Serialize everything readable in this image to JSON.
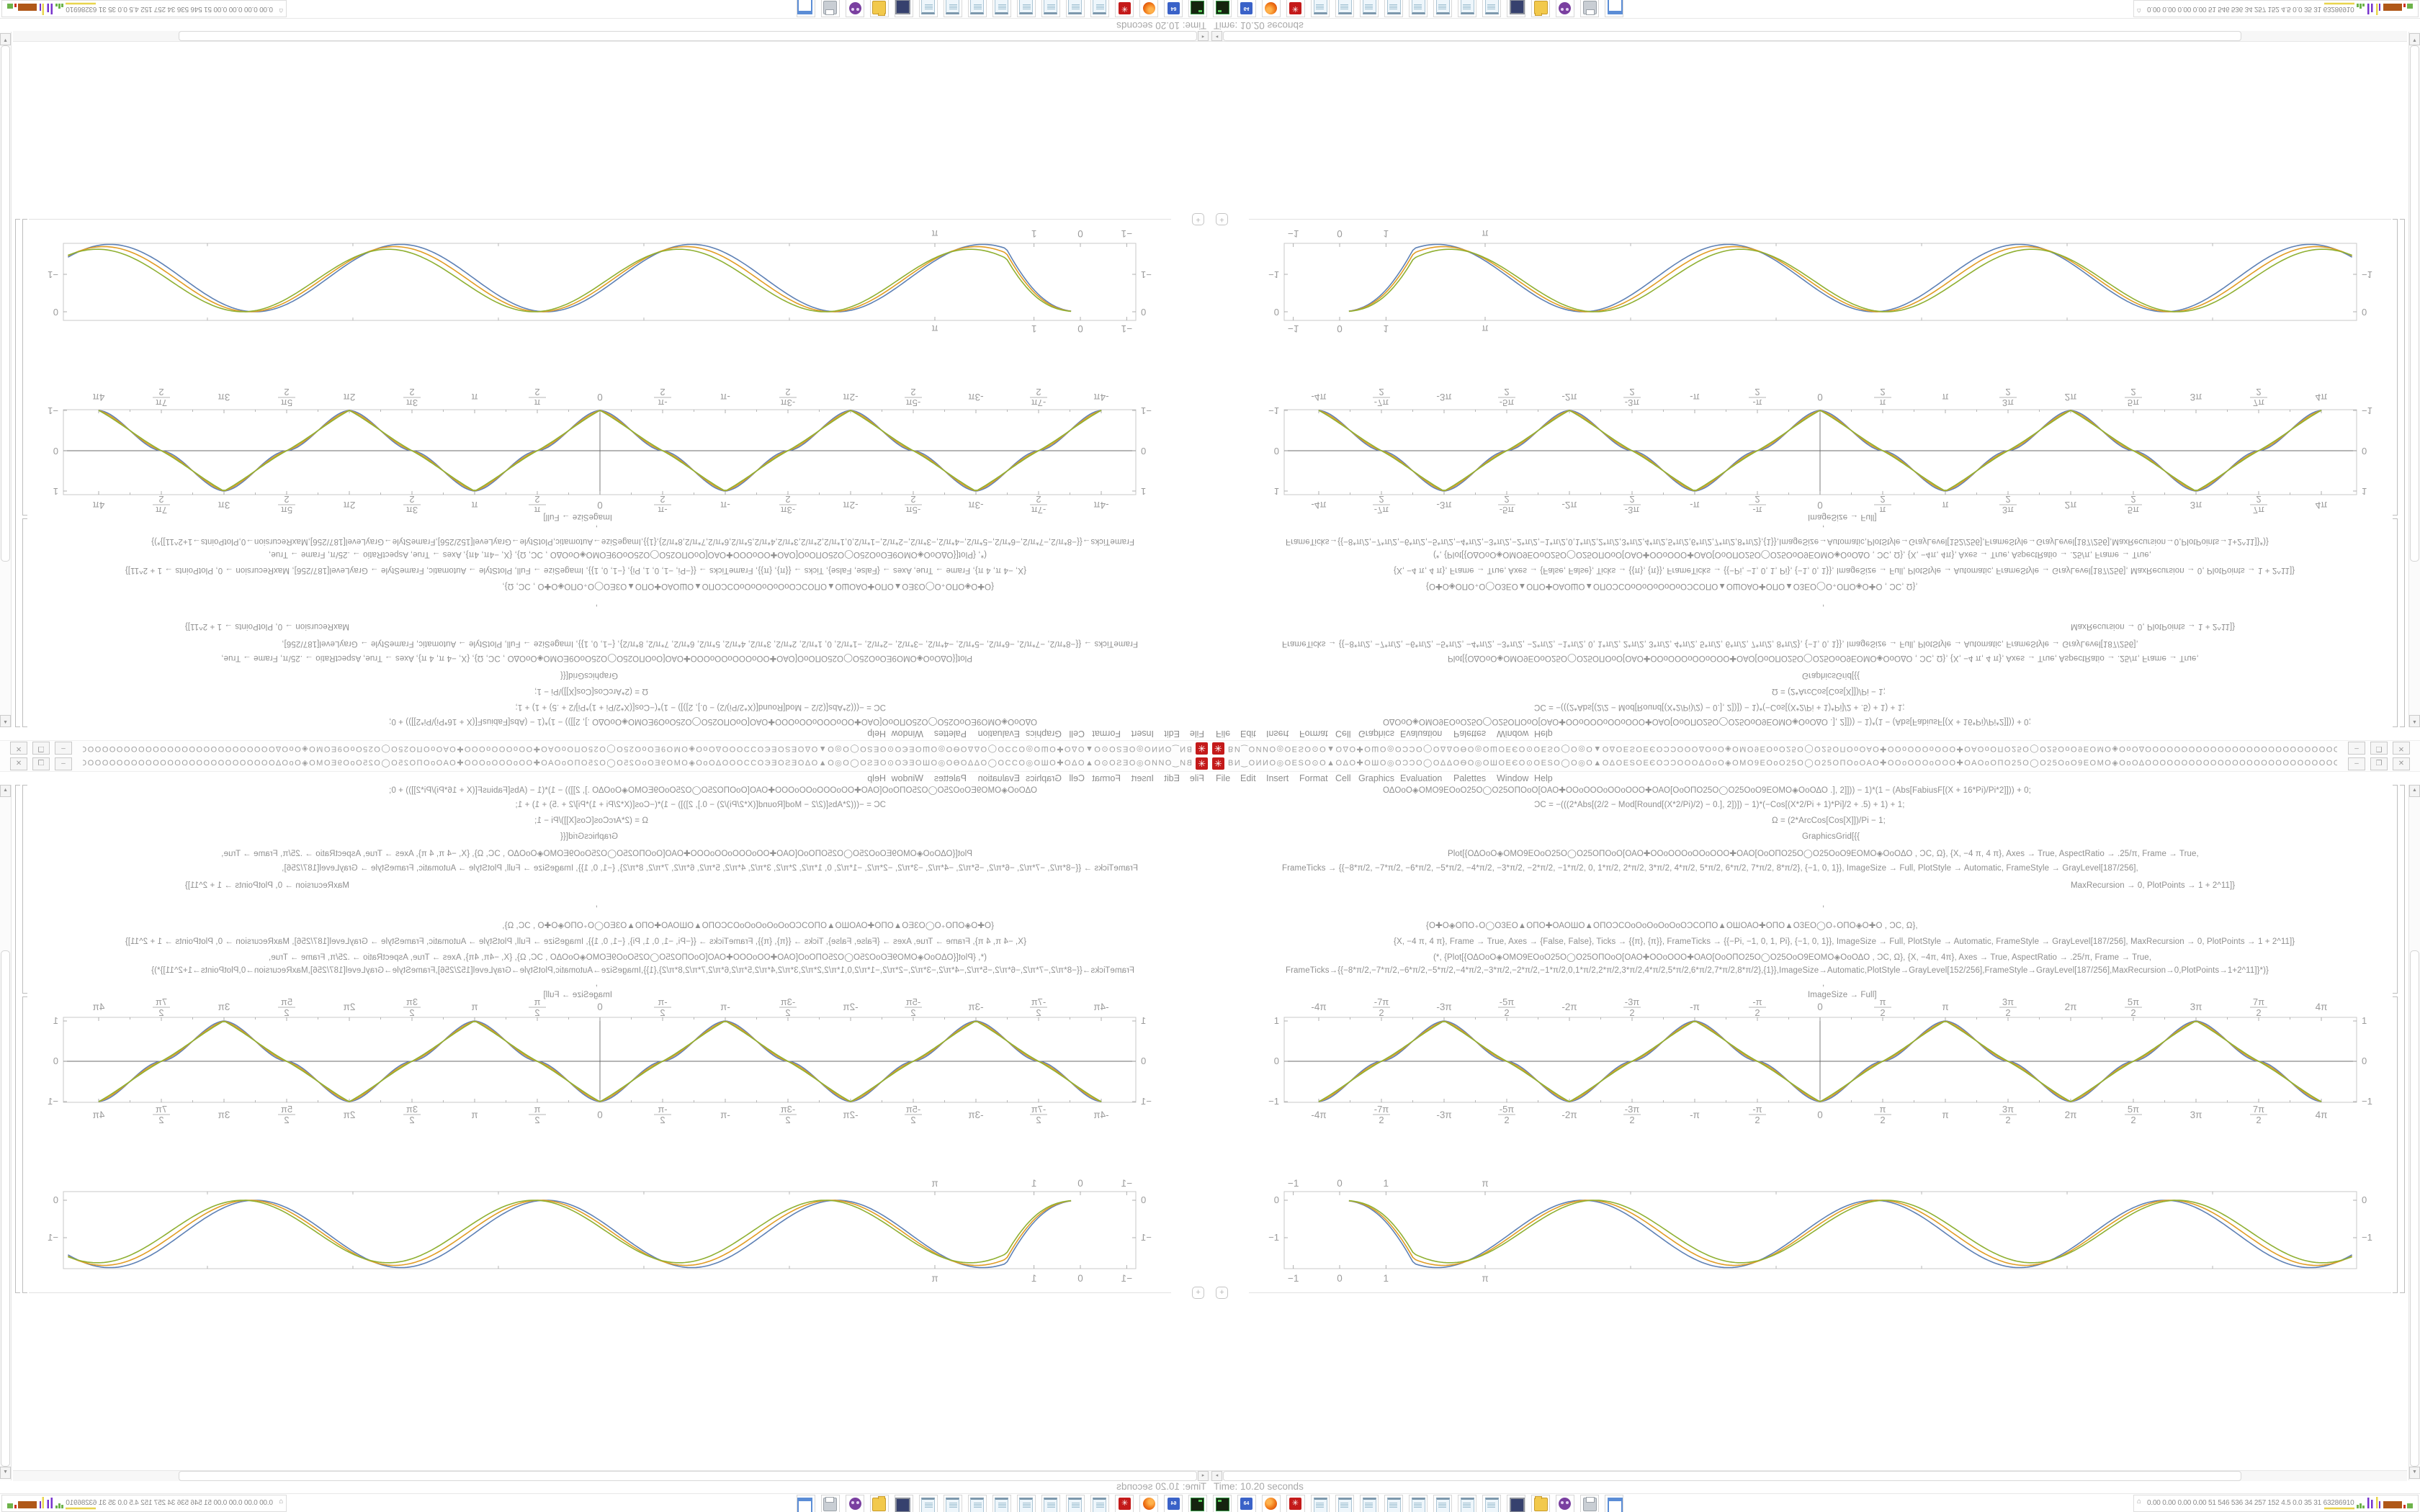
{
  "window": {
    "icon_glyph": "✳",
    "title_glyphs": "ВИ‿ОИИО◎ОЕЅО⊙О▲ОΔО✚ОШО◎ОƆƆО◯ОΔΔОѲО◎ОШОЕЄО⊙ОЕЅО◯О◎О▲ОΔОЕЅОЕЄОƆƆОΟОΔΟοΟ◈ΟΜΟ9ΕΟοΟ25Ο◯Ο25ΟΠΟοΟΑΟ✚ΟΟοΟΟΟοΟΟΟ✚ΟΑΟοΟΠΟ25Ο◯Ο25ΟοΟ9ΕΟΜΟ◈ΟοΟΔΟΟΟΟΟΟΟΟΟΟΟΟΟΟΟΟΟΟΟΟΟΟΟΟΟΟΟΟΟ",
    "buttons": [
      "–",
      "❐",
      "✕"
    ]
  },
  "menu": {
    "items": [
      "File",
      "Edit",
      "Insert",
      "Format",
      "Cell",
      "Graphics",
      "Evaluation",
      "Palettes",
      "Window",
      "Help"
    ],
    "items_x": [
      8,
      42,
      78,
      124,
      174,
      206,
      264,
      338,
      398,
      450
    ]
  },
  "notebook": {
    "insert_plus": "+",
    "code_lines": [
      {
        "y": 0,
        "x": 240,
        "text": "ΟΔΟοΟ◈ΟΜΟ9ΕΟοΟ25Ο◯Ο25ΟΠΟοΟ[ΟΑΟ✚ΟΟοΟΟΟοΟΟοΟΟΟ✚ΟΑΟ[ΟοΟΠΟ25Ο◯Ο25ΟοΟ9ΕΟΜΟ◈ΟοΟΔΟ .], 2]])) − 1)*(1 − (Abs[FabiusF[(X + 16*Pi)/Pi*2]])) + 0;"
      },
      {
        "y": 22,
        "x": 450,
        "text": "ƆC = −(((2*Abs[(2/2 − Mod[Round[(X*2/Pi)/2) − 0.], 2])]) − 1)*(−Cos[(X*2/Pi + 1)*Pi]/2 + .5) + 1) + 1;"
      },
      {
        "y": 44,
        "x": 780,
        "text": "Ω = (2*ArcCos[Cos[X]])/Pi − 1;"
      },
      {
        "y": 66,
        "x": 822,
        "text": "GraphicsGrid[{{"
      },
      {
        "y": 88,
        "x": 330,
        "text": "Plot[{ΟΔΟοΟ◈ΟΜΟ9ΕΟοΟ25Ο◯Ο25ΟΠΟοΟ[ΟΑΟ✚ΟΟοΟΟΟοΟΟοΟΟΟ✚ΟΑΟ[ΟοΟΠΟ25Ο◯Ο25ΟοΟ9ΕΟΜΟ◈ΟοΟΔΟ   , ƆC, Ω}, {X, −4 π, 4 π}, Axes → True, AspectRatio → .25/π, Frame → True,"
      },
      {
        "y": 110,
        "x": 100,
        "text": "FrameTicks → {{−8*π/2, −7*π/2, −6*π/2, −5*π/2, −4*π/2, −3*π/2, −2*π/2, −1*π/2, 0, 1*π/2, 2*π/2, 3*π/2, 4*π/2, 5*π/2, 6*π/2, 7*π/2, 8*π/2}, {−1, 0, 1}}, ImageSize → Full, PlotStyle → Automatic, FrameStyle → GrayLevel[187/256],"
      },
      {
        "y": 134,
        "x": 1195,
        "text": "MaxRecursion → 0, PlotPoints → 1 + 2^11]}"
      },
      {
        "y": 160,
        "x": 850,
        "text": ","
      },
      {
        "y": 188,
        "x": 300,
        "text": "{Ο✚Ο◈ΟΠΟ₊Ο◯Ο3ΕΟ▲ΟΠΟ✚ΟΑΟШΟ▲ΟΠΟƆϹΟοΟοΟοΟοΟοΟƆϹΟΠΟ▲ΟШΟΑΟ✚ΟΠΟ▲Ο3ΕΟ◯Ο₊ΟΠΟ◈Ο✚Ο   , ƆC, Ω},"
      },
      {
        "y": 212,
        "x": 255,
        "text": "{X, −4 π, 4 π}, Frame → True, Axes → {False, False}, Ticks → {{π}, {π}}, FrameTicks → {{−Pi, −1, 0, 1, Pi}, {−1, 0, 1}}, ImageSize → Full, PlotStyle → Automatic, FrameStyle → GrayLevel[187/256], MaxRecursion → 0, PlotPoints → 1 + 2^11]}"
      },
      {
        "y": 232,
        "x": 310,
        "text": "(*, {Plot[{ΟΔΟοΟ◈ΟΜΟ9ΕΟοΟ25Ο◯Ο25ΟΠΟοΟ[ΟΑΟ✚ΟΟοΟΟΟ✚ΟΑΟ[ΟοΟΠΟ25Ο◯Ο25ΟοΟ9ΕΟΜΟ◈ΟοΟΔΟ  , ƆC, Ω}, {X, −4π, 4π}, Axes → True, AspectRatio → .25/π, Frame → True,"
      },
      {
        "y": 252,
        "x": 105,
        "text": "FrameTicks→{{−8*π/2,−7*π/2,−6*π/2,−5*π/2,−4*π/2,−3*π/2,−2*π/2,−1*π/2,0,1*π/2,2*π/2,3*π/2,4*π/2,5*π/2,6*π/2,7*π/2,8*π/2},{1}},ImageSize→Automatic,PlotStyle→GrayLevel[152/256],FrameStyle→GrayLevel[187/256],MaxRecursion→0,PlotPoints→1+2^11]}*)}"
      },
      {
        "y": 270,
        "x": 850,
        "text": ","
      },
      {
        "y": 286,
        "x": 830,
        "text": "ImageSize → Full]"
      }
    ]
  },
  "chart_data": [
    {
      "type": "line",
      "title": "",
      "xlabel": "",
      "ylabel": "",
      "x_range_pi": [
        -4,
        4
      ],
      "ylim": [
        -1,
        1
      ],
      "x_tick_labels": [
        "-4π",
        "-7π/2",
        "-3π",
        "-5π/2",
        "-2π",
        "-3π/2",
        "-π",
        "-π/2",
        "0",
        "π/2",
        "π",
        "3π/2",
        "2π",
        "5π/2",
        "3π",
        "7π/2",
        "4π"
      ],
      "y_tick_labels": [
        "1",
        "0",
        "-1"
      ],
      "grid": false,
      "legend": "none",
      "frame": true,
      "axes": true,
      "description": "Three smoothed triangle waves, period 2π, troughs -1 at even multiples of π, peaks +1 at odd multiples of π; smoothing: blue most (plateaus), orange medium, green nearly sharp triangle",
      "series": [
        {
          "name": "smoothed-triangle-blue",
          "color": "#5e81b5",
          "smoothing": 0.88
        },
        {
          "name": "smoothed-triangle-orange",
          "color": "#e19c24",
          "smoothing": 0.5
        },
        {
          "name": "smoothed-triangle-green",
          "color": "#8fb032",
          "smoothing": 0.15
        }
      ]
    },
    {
      "type": "line",
      "title": "",
      "xlabel": "",
      "ylabel": "",
      "x_tick_labels": [
        "-1",
        "0",
        "1",
        "π"
      ],
      "y_tick_labels": [
        "0",
        "-1"
      ],
      "ylim": [
        0.2,
        -1.85
      ],
      "grid": false,
      "legend": "none",
      "frame": true,
      "axes": false,
      "description": "Three phase-shifted raised-cosine dips y = -A(1-cos(x-5.25-φ)), min ≈ -1.75 near x≈2.1+2πk, crests touching 0 near x≈5.25+2πk; four dips visible across frame",
      "series": [
        {
          "name": "cos-dip-blue",
          "color": "#5e81b5",
          "A": 0.9,
          "phase": 0.0
        },
        {
          "name": "cos-dip-orange",
          "color": "#e19c24",
          "A": 0.87,
          "phase": 0.13
        },
        {
          "name": "cos-dip-green",
          "color": "#8fb032",
          "A": 0.835,
          "phase": 0.27
        }
      ]
    }
  ],
  "plot_colors": {
    "frame": "#c9c9c9",
    "axis": "#6b6b6b",
    "label": "#9b9b9b"
  },
  "scroll": {
    "up": "▲",
    "down": "▼",
    "left": "◂"
  },
  "statusbar": {
    "time_text": "Time: 10.20 seconds"
  },
  "taskbar": {
    "icons": [
      "terminal",
      "floppy",
      "firefox",
      "mathematica",
      "notepad",
      "notepad",
      "notepad",
      "notepad",
      "notepad",
      "notepad",
      "notepad",
      "notepad",
      "monitor",
      "folder",
      "owl",
      "printer",
      "window"
    ],
    "floppy_label": "64",
    "mathematica_label": "✳",
    "sysmon": {
      "home_glyph": "⌂",
      "numbers": "0.00 0.00 0.00 0.00  51  546 536  34  257 152  4.5  0.0  35  31  63286910"
    }
  }
}
